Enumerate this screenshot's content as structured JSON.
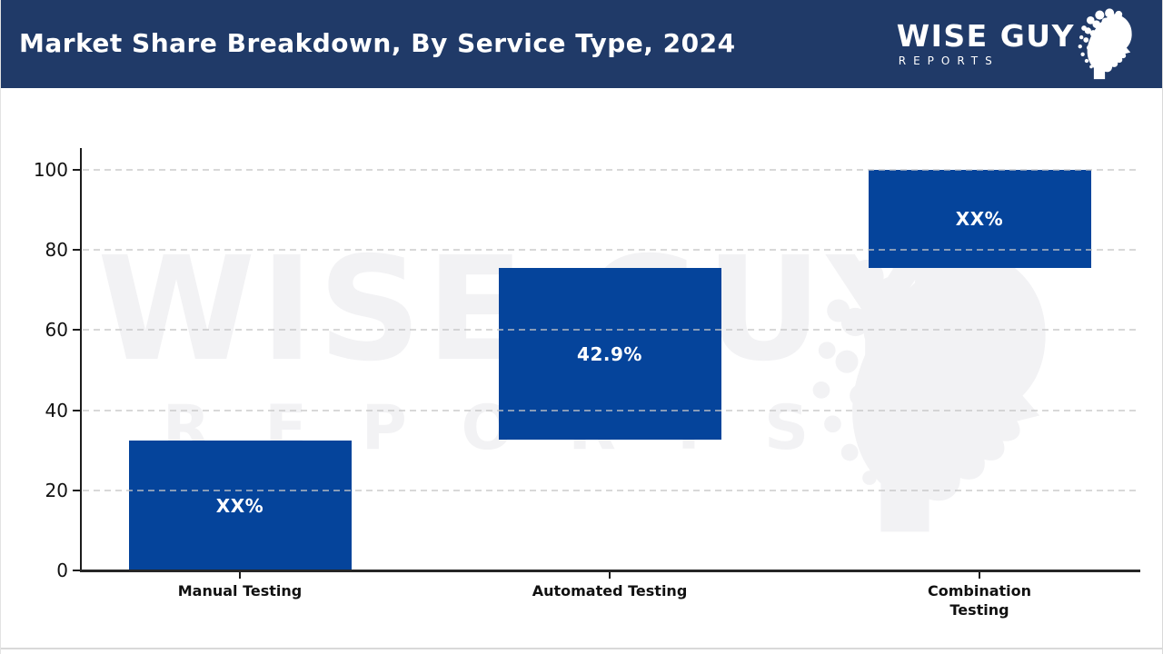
{
  "header": {
    "title": "Market Share Breakdown, By Service Type, 2024",
    "bg_color": "#203a68",
    "logo": {
      "line1": "WISE GUY",
      "line2": "REPORTS"
    }
  },
  "watermark": {
    "line1": "WISE GUY",
    "line2": "REPORTS"
  },
  "chart_data": {
    "type": "bar",
    "variant": "waterfall",
    "title": "Market Share Breakdown, By Service Type, 2024",
    "categories": [
      "Manual Testing",
      "Automated Testing",
      "Combination Testing"
    ],
    "category_display": [
      "Manual Testing",
      "Automated Testing",
      "Combination\nTesting"
    ],
    "series": [
      {
        "name": "Market share (%)",
        "segments": [
          {
            "category": "Manual Testing",
            "start": 0,
            "end": 32.5,
            "label": "XX%"
          },
          {
            "category": "Automated Testing",
            "start": 32.5,
            "end": 75.4,
            "label": "42.9%"
          },
          {
            "category": "Combination Testing",
            "start": 75.4,
            "end": 100,
            "label": "XX%"
          }
        ]
      }
    ],
    "xlabel": "",
    "ylabel": "",
    "yticks": [
      0,
      20,
      40,
      60,
      80,
      100
    ],
    "ylim": [
      0,
      105
    ],
    "grid": {
      "axis": "y",
      "style": "dashed"
    },
    "legend": "none",
    "bar_color": "#05449b",
    "bar_label_color": "#ffffff",
    "axis_color": "#1c1c1c",
    "grid_color": "#d8d8d8"
  }
}
